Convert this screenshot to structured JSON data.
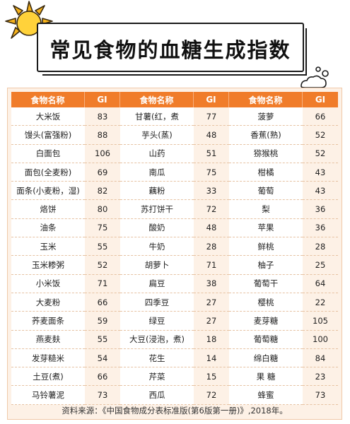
{
  "title": "常见食物的血糖生成指数",
  "table": {
    "headers": [
      "食物名称",
      "GI",
      "食物名称",
      "GI",
      "食物名称",
      "GI"
    ],
    "rows": [
      [
        "大米饭",
        "83",
        "甘薯(红，煮",
        "77",
        "菠萝",
        "66"
      ],
      [
        "馒头(富强粉)",
        "88",
        "芋头(蒸)",
        "48",
        "香蕉(熟)",
        "52"
      ],
      [
        "白面包",
        "106",
        "山药",
        "51",
        "猕猴桃",
        "52"
      ],
      [
        "面包(全麦粉)",
        "69",
        "南瓜",
        "75",
        "柑橘",
        "43"
      ],
      [
        "面条(小麦粉，湿)",
        "82",
        "藕粉",
        "33",
        "葡萄",
        "43"
      ],
      [
        "烙饼",
        "80",
        "苏打饼干",
        "72",
        "梨",
        "36"
      ],
      [
        "油条",
        "75",
        "酸奶",
        "48",
        "苹果",
        "36"
      ],
      [
        "玉米",
        "55",
        "牛奶",
        "28",
        "鲜桃",
        "28"
      ],
      [
        "玉米糁粥",
        "52",
        "胡萝卜",
        "71",
        "柚子",
        "25"
      ],
      [
        "小米饭",
        "71",
        "扁豆",
        "38",
        "葡萄干",
        "64"
      ],
      [
        "大麦粉",
        "66",
        "四季豆",
        "27",
        "樱桃",
        "22"
      ],
      [
        "荞麦面条",
        "59",
        "绿豆",
        "27",
        "麦芽糖",
        "105"
      ],
      [
        "燕麦麸",
        "55",
        "大豆(浸泡，煮)",
        "18",
        "葡萄糖",
        "100"
      ],
      [
        "发芽糙米",
        "54",
        "花生",
        "14",
        "绵白糖",
        "84"
      ],
      [
        "土豆(煮)",
        "66",
        "芹菜",
        "15",
        "果 糖",
        "23"
      ],
      [
        "马铃薯泥",
        "73",
        "西瓜",
        "72",
        "蜂蜜",
        "73"
      ]
    ]
  },
  "source": "资料来源：《中国食物成分表标准版(第6版第一册)》,2018年。",
  "colors": {
    "header_bg": "#f07c2a",
    "gi_cell_bg": "#fdf1e6",
    "sun": "#f6b21b"
  },
  "icons": {
    "sun": "sun-icon",
    "bubbles": "bubbles-icon"
  }
}
